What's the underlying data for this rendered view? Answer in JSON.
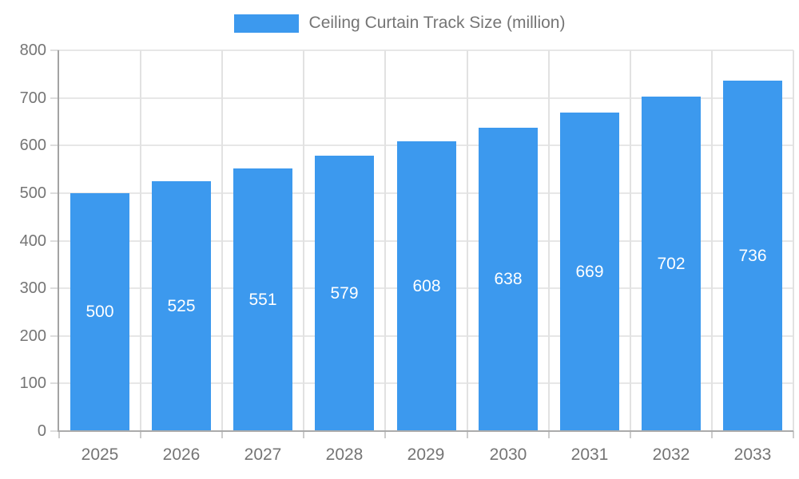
{
  "chart_data": {
    "type": "bar",
    "title": "Ceiling Curtain Track Size (million)",
    "legend_entries": [
      "Ceiling Curtain Track Size (million)"
    ],
    "legend_position": "top",
    "categories": [
      "2025",
      "2026",
      "2027",
      "2028",
      "2029",
      "2030",
      "2031",
      "2032",
      "2033"
    ],
    "series": [
      {
        "name": "Ceiling Curtain Track Size (million)",
        "values": [
          500,
          525,
          551,
          579,
          608,
          638,
          669,
          702,
          736
        ]
      }
    ],
    "bar_labels": [
      "500",
      "525",
      "551",
      "579",
      "608",
      "638",
      "669",
      "702",
      "736"
    ],
    "xlabel": "",
    "ylabel": "",
    "ylim": [
      0,
      800
    ],
    "yticks": [
      0,
      100,
      200,
      300,
      400,
      500,
      600,
      700,
      800
    ],
    "grid": true,
    "colors": {
      "bar": "#3C99EE",
      "bar_label_text": "#FFFFFF",
      "axis_text": "#757575",
      "legend_text": "#757575",
      "gridline": "#E7E7E7",
      "axis_line": "#A6A6A6",
      "background": "#FFFFFF"
    }
  }
}
